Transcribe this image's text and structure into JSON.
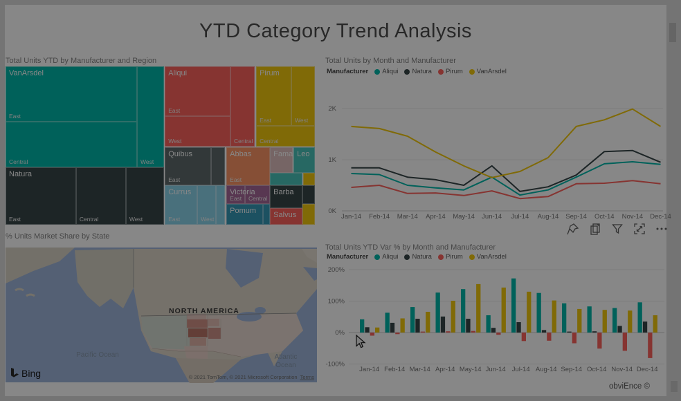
{
  "page": {
    "title": "YTD Category Trend Analysis",
    "credit": "obviEnce ©"
  },
  "toolbar": {
    "icons": [
      "pin",
      "copy",
      "filter",
      "focus-mode",
      "more-options"
    ]
  },
  "colors": {
    "aliqui": "#01B8AA",
    "natura": "#374649",
    "pirum": "#FD625E",
    "vanarsdel": "#F2C80F"
  },
  "chart_data": [
    {
      "type": "treemap",
      "title": "Total Units YTD by Manufacturer and Region",
      "cells": [
        {
          "name": "VanArsdel",
          "region": "East",
          "color": "#01B8AA",
          "x": 0,
          "y": 0,
          "w": 42.5,
          "h": 34.9
        },
        {
          "region": "Central",
          "color": "#01B8AA",
          "x": 0,
          "y": 34.9,
          "w": 42.5,
          "h": 28.9
        },
        {
          "region": "West",
          "color": "#01B8AA",
          "x": 42.5,
          "y": 0,
          "w": 8.7,
          "h": 63.8
        },
        {
          "name": "Natura",
          "region": "East",
          "color": "#374649",
          "x": 0,
          "y": 63.8,
          "w": 22.8,
          "h": 36.2
        },
        {
          "region": "Central",
          "color": "#374649",
          "x": 22.8,
          "y": 63.8,
          "w": 16.1,
          "h": 36.2
        },
        {
          "region": "West",
          "color": "#374649",
          "x": 38.9,
          "y": 63.8,
          "w": 12.3,
          "h": 36.2
        },
        {
          "name": "Aliqui",
          "region": "East",
          "color": "#FD625E",
          "x": 51.5,
          "y": 0,
          "w": 21.2,
          "h": 31.4
        },
        {
          "region": "West",
          "color": "#FD625E",
          "x": 51.5,
          "y": 31.4,
          "w": 21.2,
          "h": 19.3
        },
        {
          "region": "Central",
          "color": "#FD625E",
          "x": 72.7,
          "y": 0,
          "w": 7.8,
          "h": 50.7
        },
        {
          "name": "Pirum",
          "region": "East",
          "color": "#F2C80F",
          "x": 81,
          "y": 0,
          "w": 11.4,
          "h": 37.6
        },
        {
          "region": "West",
          "color": "#F2C80F",
          "x": 92.4,
          "y": 0,
          "w": 7.6,
          "h": 37.6
        },
        {
          "region": "Central",
          "color": "#F2C80F",
          "x": 81,
          "y": 37.6,
          "w": 19,
          "h": 13.1
        },
        {
          "name": "Quibus",
          "region": "East",
          "color": "#5F6B6D",
          "x": 51.5,
          "y": 51.1,
          "w": 15,
          "h": 24
        },
        {
          "color": "#5F6B6D",
          "x": 66.5,
          "y": 51.1,
          "w": 4.5,
          "h": 24
        },
        {
          "name": "Currus",
          "region": "East",
          "color": "#8AD4EB",
          "x": 51.5,
          "y": 75.1,
          "w": 10.5,
          "h": 24.9
        },
        {
          "region": "West",
          "color": "#8AD4EB",
          "x": 62,
          "y": 75.1,
          "w": 6,
          "h": 24.9
        },
        {
          "color": "#8AD4EB",
          "x": 68,
          "y": 75.1,
          "w": 3,
          "h": 24.9
        },
        {
          "name": "Abbas",
          "region": "East",
          "color": "#FE9666",
          "x": 71.4,
          "y": 51.1,
          "w": 14.1,
          "h": 24
        },
        {
          "name": "Fama",
          "color": "#DFBFBF",
          "x": 85.5,
          "y": 51.1,
          "w": 7.4,
          "h": 16.2
        },
        {
          "name": "Leo",
          "color": "#4AC5BB",
          "x": 93.1,
          "y": 51.1,
          "w": 6.9,
          "h": 16.2
        },
        {
          "color": "#4AC5BB",
          "x": 85.5,
          "y": 67.3,
          "w": 10.5,
          "h": 7.8
        },
        {
          "color": "#F2C80F",
          "x": 96.2,
          "y": 67.3,
          "w": 3.8,
          "h": 7.8
        },
        {
          "name": "Victoria",
          "region": "East",
          "color": "#A66999",
          "x": 71.4,
          "y": 75.1,
          "w": 6,
          "h": 11.8
        },
        {
          "region": "Central",
          "color": "#A66999",
          "x": 77.4,
          "y": 75.1,
          "w": 8.1,
          "h": 11.8
        },
        {
          "name": "Pomum",
          "color": "#3599B8",
          "x": 71.4,
          "y": 86.9,
          "w": 11.9,
          "h": 13.1
        },
        {
          "color": "#3599B8",
          "x": 83.3,
          "y": 86.9,
          "w": 2.2,
          "h": 13.1
        },
        {
          "name": "Barba",
          "color": "#374649",
          "x": 85.5,
          "y": 75.1,
          "w": 10.5,
          "h": 14.4
        },
        {
          "name": "Salvus",
          "color": "#FD625E",
          "x": 85.5,
          "y": 89.5,
          "w": 10.5,
          "h": 10.5
        },
        {
          "color": "#374649",
          "x": 96,
          "y": 75.1,
          "w": 4,
          "h": 12
        },
        {
          "color": "#F2C80F",
          "x": 96,
          "y": 87.1,
          "w": 4,
          "h": 12.9
        }
      ]
    },
    {
      "type": "line",
      "title": "Total Units by Month and Manufacturer",
      "legend_label": "Manufacturer",
      "categories": [
        "Jan-14",
        "Feb-14",
        "Mar-14",
        "Apr-14",
        "May-14",
        "Jun-14",
        "Jul-14",
        "Aug-14",
        "Sep-14",
        "Oct-14",
        "Nov-14",
        "Dec-14"
      ],
      "series": [
        {
          "name": "Aliqui",
          "color": "#01B8AA",
          "values": [
            730,
            710,
            500,
            450,
            410,
            660,
            310,
            410,
            660,
            920,
            960,
            910
          ]
        },
        {
          "name": "Natura",
          "color": "#374649",
          "values": [
            840,
            840,
            660,
            610,
            500,
            880,
            380,
            470,
            700,
            1160,
            1180,
            950
          ]
        },
        {
          "name": "Pirum",
          "color": "#FD625E",
          "values": [
            460,
            500,
            340,
            350,
            300,
            390,
            240,
            280,
            530,
            540,
            590,
            530
          ]
        },
        {
          "name": "VanArsdel",
          "color": "#F2C80F",
          "values": [
            1650,
            1610,
            1460,
            1150,
            880,
            650,
            770,
            1040,
            1650,
            1780,
            1990,
            1650
          ]
        }
      ],
      "y_ticks": [
        {
          "label": "0K",
          "value": 0
        },
        {
          "label": "1K",
          "value": 1000
        },
        {
          "label": "2K",
          "value": 2000
        }
      ],
      "ylim": [
        0,
        2200
      ],
      "legend_position": "top",
      "grid": true
    },
    {
      "type": "map",
      "title": "% Units Market Share by State",
      "region_label": "NORTH AMERICA",
      "pacific_label": "Pacific Ocean",
      "atlantic_label": "Atlantic Ocean",
      "provider": "Bing",
      "attribution": "© 2021 TomTom, © 2021 Microsoft Corporation",
      "terms_label": "Terms"
    },
    {
      "type": "bar",
      "title": "Total Units YTD Var % by Month and Manufacturer",
      "legend_label": "Manufacturer",
      "categories": [
        "Jan-14",
        "Feb-14",
        "Mar-14",
        "Apr-14",
        "May-14",
        "Jun-14",
        "Jul-14",
        "Aug-14",
        "Sep-14",
        "Oct-14",
        "Nov-14",
        "Dec-14"
      ],
      "series": [
        {
          "name": "Aliqui",
          "color": "#01B8AA",
          "values": [
            42,
            63,
            81,
            127,
            138,
            55,
            172,
            126,
            93,
            83,
            78,
            96
          ]
        },
        {
          "name": "Natura",
          "color": "#374649",
          "values": [
            17,
            31,
            44,
            51,
            44,
            15,
            33,
            8,
            3,
            4,
            21,
            35
          ]
        },
        {
          "name": "Pirum",
          "color": "#FD625E",
          "values": [
            -10,
            -5,
            3,
            4,
            5,
            -7,
            -27,
            -26,
            -34,
            -51,
            -58,
            -81
          ]
        },
        {
          "name": "VanArsdel",
          "color": "#F2C80F",
          "values": [
            16,
            45,
            66,
            101,
            154,
            143,
            130,
            102,
            75,
            72,
            70,
            55
          ]
        }
      ],
      "y_ticks": [
        {
          "label": "-100%",
          "value": -100
        },
        {
          "label": "0%",
          "value": 0
        },
        {
          "label": "100%",
          "value": 100
        },
        {
          "label": "200%",
          "value": 200
        }
      ],
      "ylim": [
        -120,
        220
      ],
      "legend_position": "top",
      "grid": true
    }
  ]
}
